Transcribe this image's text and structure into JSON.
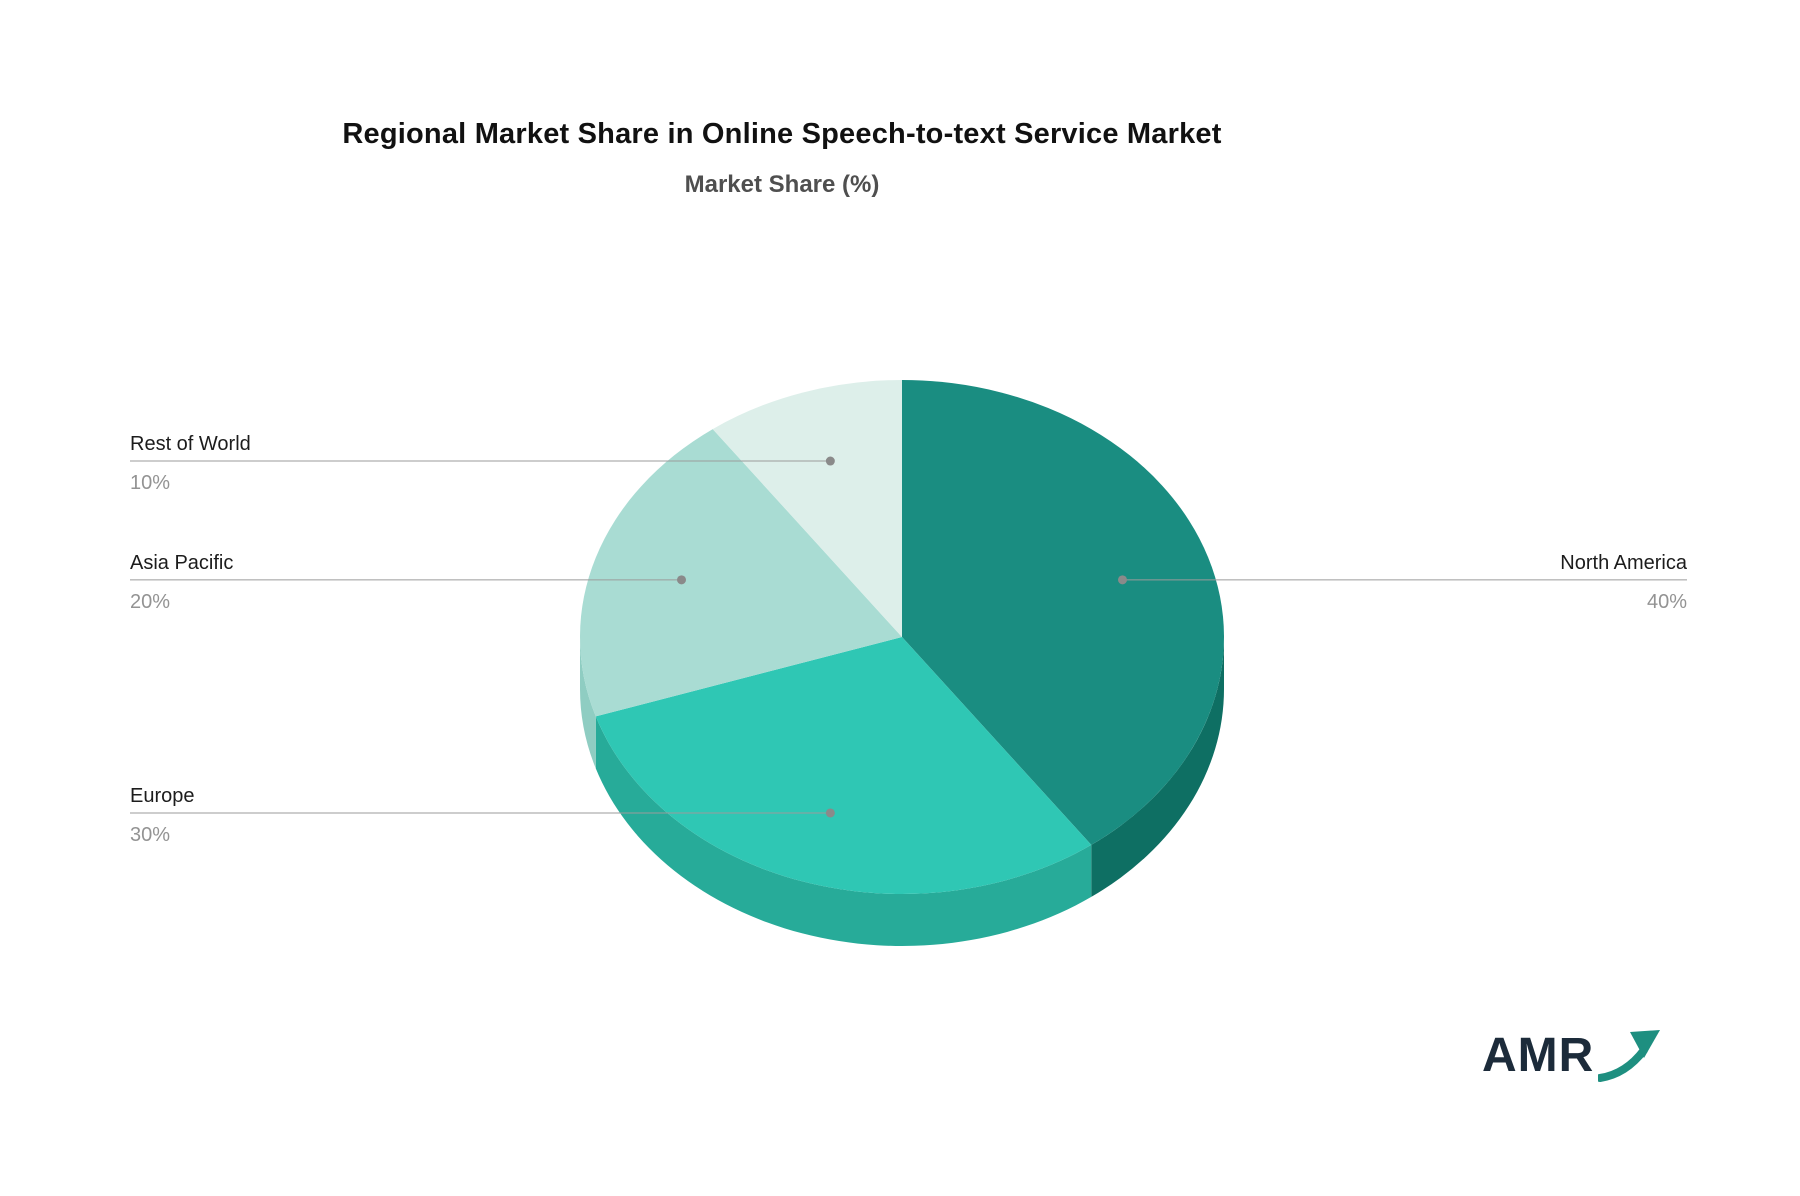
{
  "chart_data": {
    "type": "pie",
    "title": "Regional Market Share in Online Speech-to-text Service Market",
    "subtitle": "Market Share (%)",
    "unit": "%",
    "legend_position": "none",
    "direction": "clockwise",
    "start_angle_deg": 0,
    "slices": [
      {
        "label": "North America",
        "value": 40,
        "display_value": "40%",
        "color": "#1a8d81",
        "side_color": "#0e6f63",
        "label_side": "right"
      },
      {
        "label": "Europe",
        "value": 30,
        "display_value": "30%",
        "color": "#2fc7b4",
        "side_color": "#27ab99",
        "label_side": "left"
      },
      {
        "label": "Asia Pacific",
        "value": 20,
        "display_value": "20%",
        "color": "#a9dcd3",
        "side_color": "#8fcdc2",
        "label_side": "left"
      },
      {
        "label": "Rest of World",
        "value": 10,
        "display_value": "10%",
        "color": "#ddefea",
        "side_color": "#c2ded8",
        "label_side": "left"
      }
    ],
    "leader_line_color": "#9b9b9b",
    "leader_dot_color": "#8a8a8a"
  },
  "logo": {
    "text": "AMR",
    "arrow_color": "#1e8f80"
  }
}
